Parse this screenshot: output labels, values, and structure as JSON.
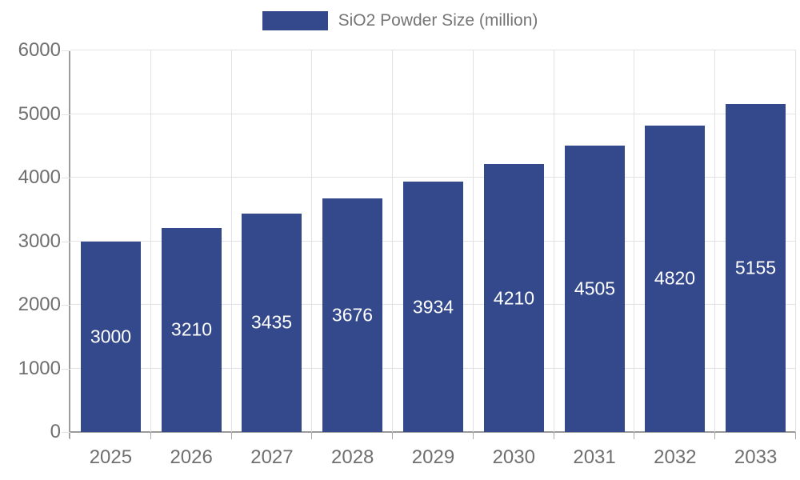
{
  "chart_data": {
    "type": "bar",
    "title": "SiO2 Powder Size (million)",
    "legend": [
      "SiO2 Powder Size (million)"
    ],
    "legend_position": "top-center",
    "categories": [
      "2025",
      "2026",
      "2027",
      "2028",
      "2029",
      "2030",
      "2031",
      "2032",
      "2033"
    ],
    "series": [
      {
        "name": "SiO2 Powder Size (million)",
        "values": [
          3000,
          3210,
          3435,
          3676,
          3934,
          4210,
          4505,
          4820,
          5155
        ]
      }
    ],
    "xlabel": "",
    "ylabel": "",
    "ylim": [
      0,
      6000
    ],
    "yticks": [
      0,
      1000,
      2000,
      3000,
      4000,
      5000,
      6000
    ],
    "grid": "horizontal-and-vertical",
    "bar_labels_inside": true,
    "colors": {
      "bar": "#34498C",
      "bar_label_text": "#FFFFFF",
      "axis_label": "#6F6F6F",
      "legend_text": "#757575",
      "grid_line": "#E2E2E6",
      "axis_line": "#9B9B9B",
      "x_tick": "#ABABAB"
    }
  }
}
